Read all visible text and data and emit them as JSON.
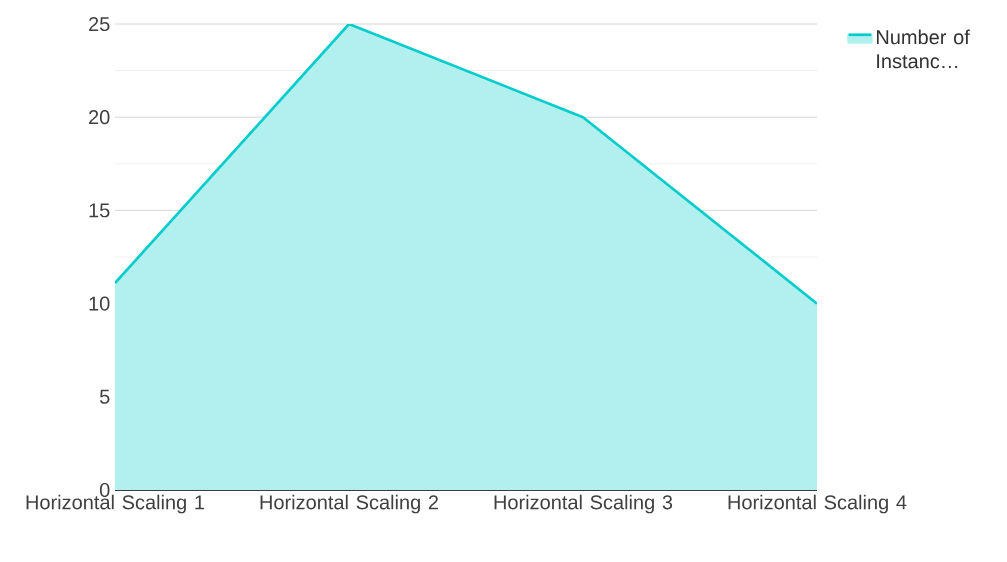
{
  "chart_data": {
    "type": "area",
    "categories": [
      "Horizontal Scaling 1",
      "Horizontal Scaling 2",
      "Horizontal Scaling 3",
      "Horizontal Scaling 4"
    ],
    "series": [
      {
        "name": "Number of Instanc…",
        "color": "#00cccc",
        "values": [
          11.1,
          25,
          20,
          10
        ]
      }
    ],
    "ylim": [
      0,
      25
    ],
    "yticks": [
      0,
      5,
      10,
      15,
      20,
      25
    ],
    "grid": "y",
    "legend": "top right"
  }
}
